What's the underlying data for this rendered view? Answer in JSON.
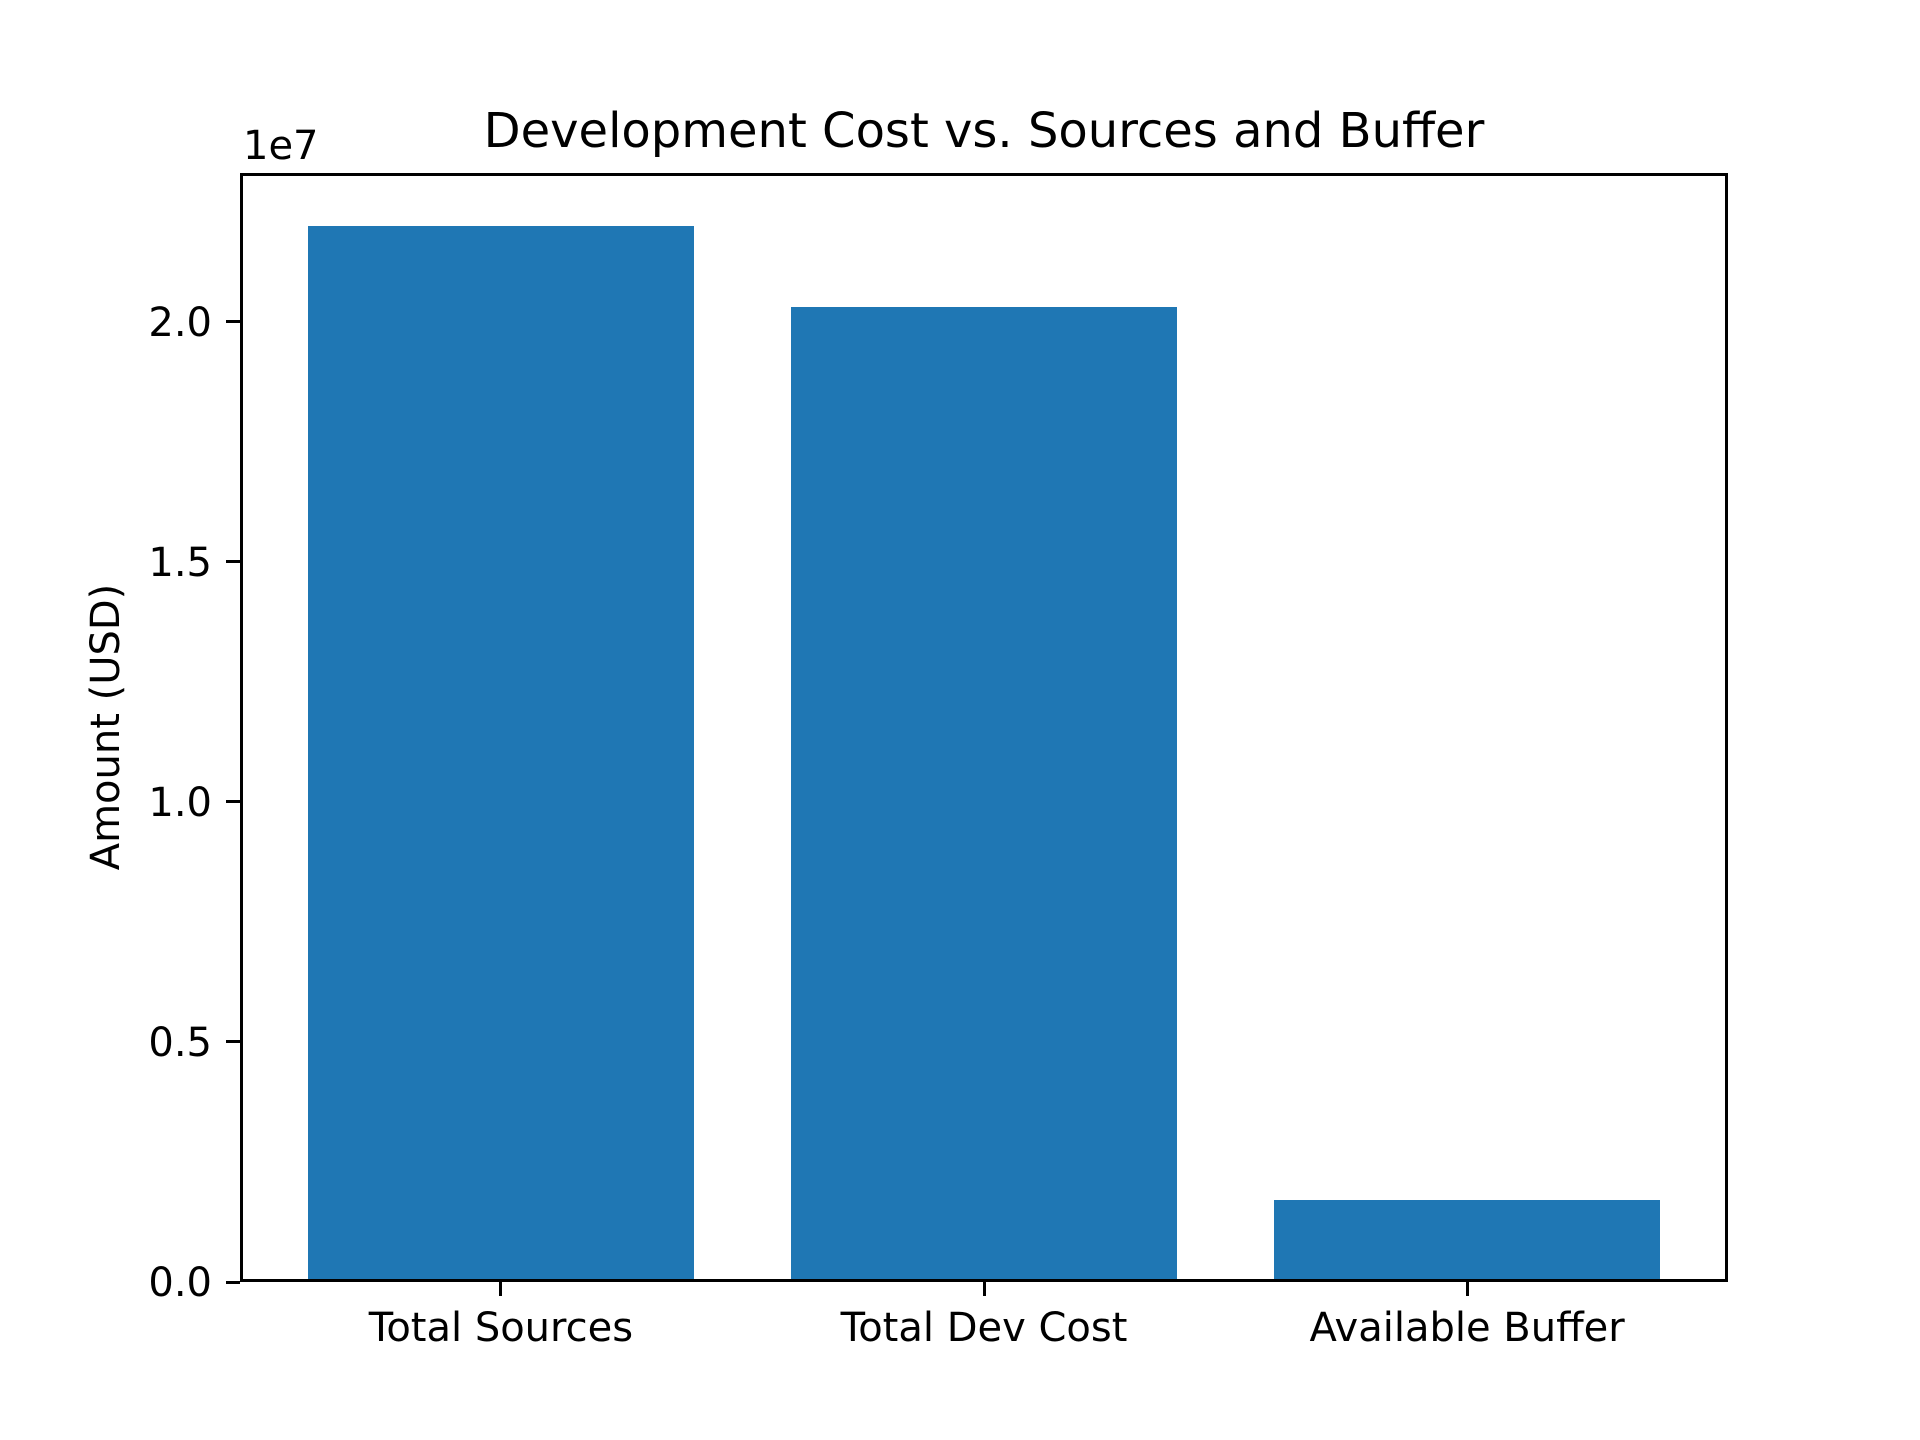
{
  "chart_data": {
    "type": "bar",
    "title": "Development Cost vs. Sources and Buffer",
    "ylabel": "Amount (USD)",
    "xlabel": "",
    "offset_text": "1e7",
    "categories": [
      "Total Sources",
      "Total Dev Cost",
      "Available Buffer"
    ],
    "values": [
      22000000,
      20300000,
      1700000
    ],
    "bar_color": "#1f77b4",
    "ylim": [
      0,
      23100000
    ],
    "yticks": [
      0,
      5000000,
      10000000,
      15000000,
      20000000
    ],
    "ytick_labels": [
      "0.0",
      "0.5",
      "1.0",
      "1.5",
      "2.0"
    ],
    "bar_width_fraction": 0.8,
    "grid": false,
    "legend": null,
    "axis_color": "#000000",
    "background_color": "#ffffff"
  }
}
